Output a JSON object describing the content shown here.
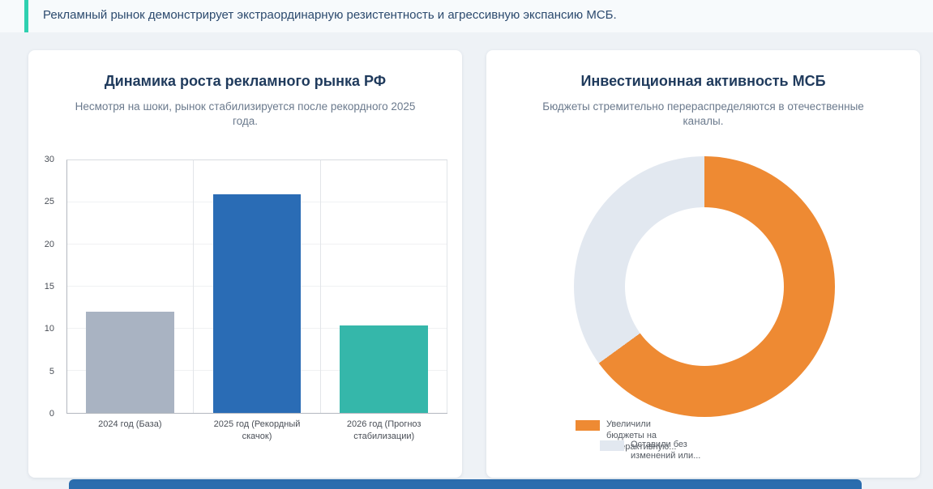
{
  "page": {
    "background_color": "#eef2f6",
    "accent_color": "#2fd0b0",
    "bottom_bar_color": "#2b6dae"
  },
  "header": {
    "text": "Рекламный рынок демонстрирует экстраординарную резистентность и агрессивную экспансию МСБ."
  },
  "cards": {
    "left": {
      "title": "Динамика роста рекламного рынка РФ",
      "subtitle": "Несмотря на шоки, рынок стабилизируется после рекордного 2025 года."
    },
    "right": {
      "title": "Инвестиционная активность МСБ",
      "subtitle": "Бюджеты стремительно перераспределяются в отечественные каналы."
    }
  },
  "chart_data": [
    {
      "type": "bar",
      "title": "Динамика роста рекламного рынка РФ",
      "categories": [
        "2024 год (База)",
        "2025 год (Рекордный скачок)",
        "2026 год (Прогноз стабилизации)"
      ],
      "values": [
        12,
        26,
        10.4
      ],
      "colors": [
        "#a9b3c2",
        "#2a6cb5",
        "#35b7aa"
      ],
      "ylim": [
        0,
        30
      ],
      "yticks": [
        0,
        5,
        10,
        15,
        20,
        25,
        30
      ],
      "grid": true,
      "legend_position": "none"
    },
    {
      "type": "pie",
      "title": "Инвестиционная активность МСБ",
      "labels": [
        "Увеличили бюджеты на интерактивную...",
        "Оставили без изменений или..."
      ],
      "values": [
        65,
        35
      ],
      "colors": [
        "#ee8a33",
        "#e2e8f0"
      ],
      "legend_position": "bottom"
    }
  ]
}
